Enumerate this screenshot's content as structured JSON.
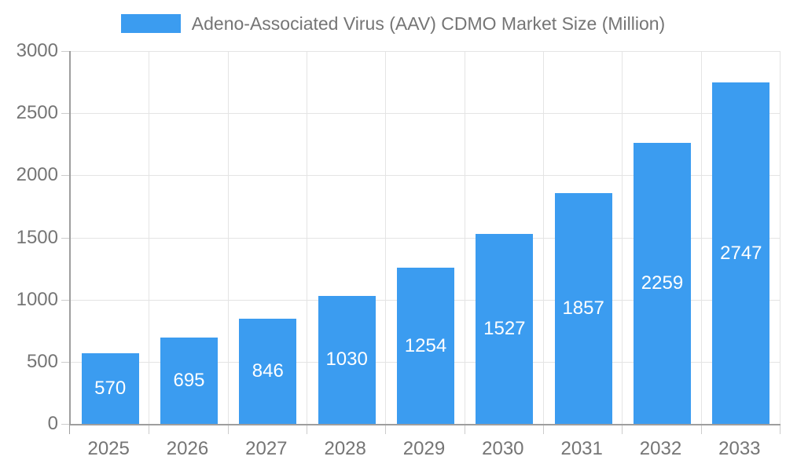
{
  "chart_data": {
    "type": "bar",
    "title": "Adeno-Associated Virus (AAV) CDMO Market Size (Million)",
    "series_name": "Adeno-Associated Virus (AAV) CDMO Market Size (Million)",
    "categories": [
      "2025",
      "2026",
      "2027",
      "2028",
      "2029",
      "2030",
      "2031",
      "2032",
      "2033"
    ],
    "values": [
      570,
      695,
      846,
      1030,
      1254,
      1527,
      1857,
      2259,
      2747
    ],
    "xlabel": "",
    "ylabel": "",
    "ylim": [
      0,
      3000
    ],
    "ytick_step": 500,
    "yticks": [
      0,
      500,
      1000,
      1500,
      2000,
      2500,
      3000
    ],
    "grid": "on",
    "legend_position": "top",
    "colors": {
      "bar": "#3b9cf0",
      "value_label": "#ffffff",
      "axis_text": "#757575",
      "axis_line": "#9e9e9e",
      "gridline": "#e4e4e4",
      "tick": "#cccccc",
      "background": "#ffffff"
    }
  }
}
